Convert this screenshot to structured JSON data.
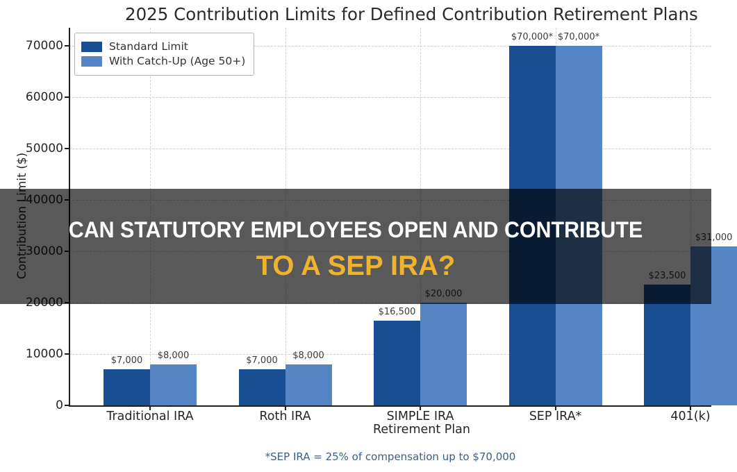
{
  "chart_data": {
    "type": "bar",
    "title": "2025 Contribution Limits for Defined Contribution Retirement Plans",
    "xlabel": "Retirement Plan",
    "ylabel": "Contribution Limit ($)",
    "categories": [
      "Traditional IRA",
      "Roth IRA",
      "SIMPLE IRA",
      "SEP IRA*",
      "401(k)"
    ],
    "series": [
      {
        "name": "Standard Limit",
        "color": "#1a4e93",
        "values": [
          7000,
          7000,
          16500,
          70000,
          23500
        ],
        "labels": [
          "$7,000",
          "$7,000",
          "$16,500",
          "$70,000*",
          "$23,500"
        ]
      },
      {
        "name": "With Catch-Up (Age 50+)",
        "color": "#5685c5",
        "values": [
          8000,
          8000,
          20000,
          70000,
          31000
        ],
        "labels": [
          "$8,000",
          "$8,000",
          "$20,000",
          "$70,000*",
          "$31,000"
        ]
      }
    ],
    "ylim": [
      0,
      74000
    ],
    "yticks": [
      0,
      10000,
      20000,
      30000,
      40000,
      50000,
      60000,
      70000
    ],
    "ytick_labels": [
      "0",
      "10000",
      "20000",
      "30000",
      "40000",
      "50000",
      "60000",
      "70000"
    ],
    "grid": true,
    "legend_position": "upper left",
    "footnote": "*SEP IRA = 25% of compensation up to $70,000",
    "axis_color": "#1f1f1f",
    "grid_color": "#cfcfcf",
    "footnote_color": "#3c5e86"
  },
  "overlay": {
    "line1": "CAN STATUTORY EMPLOYEES OPEN AND CONTRIBUTE",
    "line2": "TO A SEP IRA?",
    "line1_color": "#ffffff",
    "line2_color": "#f0b32e",
    "background": "rgba(0,0,0,0.65)"
  }
}
